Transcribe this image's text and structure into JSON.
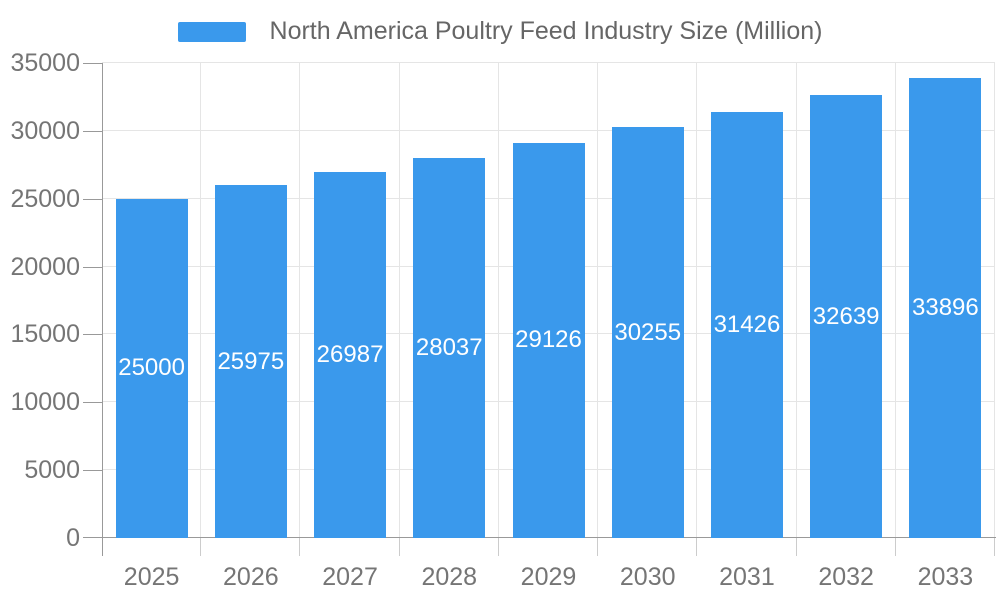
{
  "legend": {
    "label": "North America Poultry Feed Industry Size (Million)"
  },
  "chart_data": {
    "type": "bar",
    "title": "North America Poultry Feed Industry Size (Million)",
    "categories": [
      "2025",
      "2026",
      "2027",
      "2028",
      "2029",
      "2030",
      "2031",
      "2032",
      "2033"
    ],
    "values": [
      25000,
      25975,
      26987,
      28037,
      29126,
      30255,
      31426,
      32639,
      33896
    ],
    "xlabel": "",
    "ylabel": "",
    "ylim": [
      0,
      35000
    ],
    "ytick_step": 5000,
    "yticks": [
      0,
      5000,
      10000,
      15000,
      20000,
      25000,
      30000,
      35000
    ],
    "grid": true,
    "legend_position": "top",
    "bar_label_position": "inside-center"
  },
  "colors": {
    "bar": "#3A99EC",
    "bar_label": "#FFFFFF",
    "grid_line": "#E5E5E5",
    "axis_line": "#999999",
    "y_tick": "#999999",
    "x_tick": "#CCCCCC",
    "axis_text": "#757575",
    "title_text": "#666666",
    "background": "#FFFFFF"
  }
}
